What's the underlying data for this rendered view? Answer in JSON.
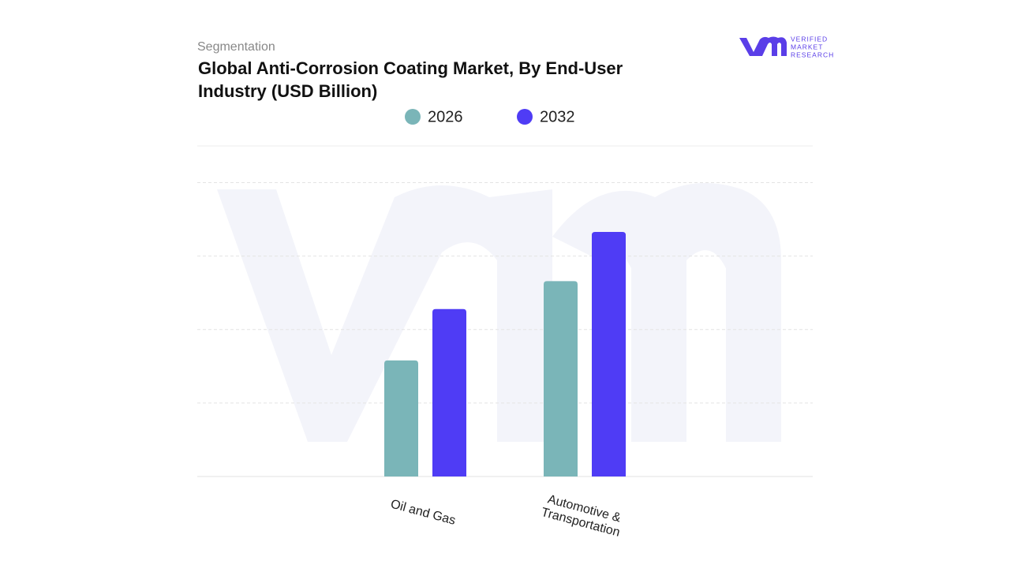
{
  "chart_data": {
    "type": "bar",
    "subtitle": "Segmentation",
    "title_lines": [
      "Global Anti-Corrosion Coating Market, By End-User",
      "Industry (USD Billion)"
    ],
    "logo": [
      "VERIFIED",
      "MARKET",
      "RESEARCH"
    ],
    "categories": [
      [
        "Oil and Gas"
      ],
      [
        "Automotive &",
        "Transportation"
      ]
    ],
    "series": [
      {
        "name": "2026",
        "color": "#7ab5b8",
        "values": [
          1.58,
          2.66
        ]
      },
      {
        "name": "2032",
        "color": "#4f3cf5",
        "values": [
          2.28,
          3.33
        ]
      }
    ],
    "ylim": [
      0,
      4.5
    ],
    "yticks": [
      1,
      2,
      3,
      4
    ],
    "grid": true
  }
}
